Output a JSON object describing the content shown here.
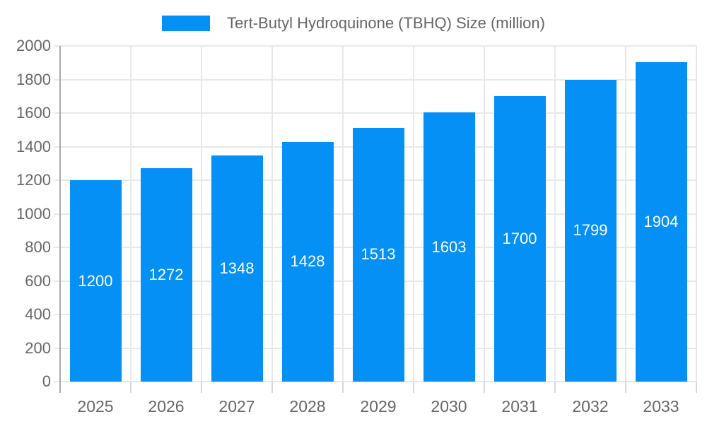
{
  "colors": {
    "bar": "#0590F6",
    "grid": "#E8E8E8",
    "tick": "#D8D8D8",
    "axis_line": "#A9A9A9",
    "axis_label": "#666666",
    "bar_label": "#FFFFFF",
    "legend_text": "#666666",
    "background": "#FFFFFF"
  },
  "legend": {
    "label": "Tert-Butyl Hydroquinone (TBHQ) Size (million)"
  },
  "chart_data": {
    "type": "bar",
    "title": "Tert-Butyl Hydroquinone (TBHQ) Size (million)",
    "categories": [
      "2025",
      "2026",
      "2027",
      "2028",
      "2029",
      "2030",
      "2031",
      "2032",
      "2033"
    ],
    "values": [
      1200,
      1272,
      1348,
      1428,
      1513,
      1603,
      1700,
      1799,
      1904
    ],
    "xlabel": "",
    "ylabel": "",
    "ylim": [
      0,
      2000
    ],
    "ytick_step": 200,
    "ytick_labels": [
      "0",
      "200",
      "400",
      "600",
      "800",
      "1000",
      "1200",
      "1400",
      "1600",
      "1800",
      "2000"
    ],
    "grid": true,
    "legend_position": "top",
    "bar_value_labels": true
  }
}
